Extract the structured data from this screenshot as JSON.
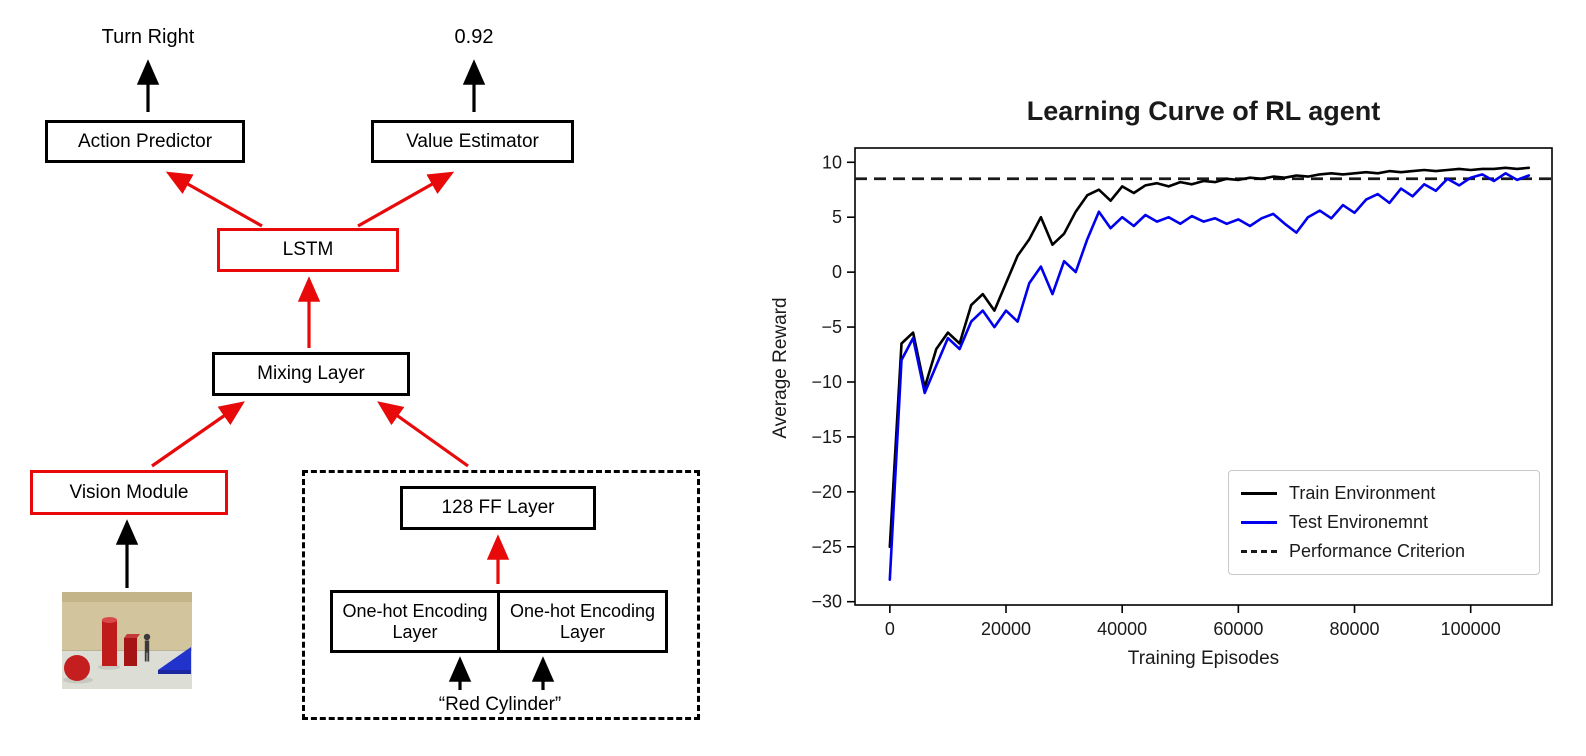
{
  "diagram": {
    "outputs": {
      "action": "Turn Right",
      "value": "0.92"
    },
    "boxes": {
      "action_predictor": "Action Predictor",
      "value_estimator": "Value Estimator",
      "lstm": "LSTM",
      "mixing_layer": "Mixing Layer",
      "vision_module": "Vision Module",
      "ff_layer": "128 FF Layer",
      "onehot_left": "One-hot Encoding Layer",
      "onehot_right": "One-hot Encoding Layer"
    },
    "input_label": "“Red Cylinder”",
    "colors": {
      "highlight": "#e80a0a",
      "box_border": "#000000"
    }
  },
  "chart_data": {
    "type": "line",
    "title": "Learning Curve of RL agent",
    "xlabel": "Training Episodes",
    "ylabel": "Average Reward",
    "xlim": [
      -6000,
      114000
    ],
    "ylim": [
      -30.3,
      11.3
    ],
    "xticks": [
      0,
      20000,
      40000,
      60000,
      80000,
      100000
    ],
    "yticks": [
      10,
      5,
      0,
      -5,
      -10,
      -15,
      -20,
      -25,
      -30
    ],
    "grid": false,
    "legend_position": "lower right",
    "x": [
      0,
      2000,
      4000,
      6000,
      8000,
      10000,
      12000,
      14000,
      16000,
      18000,
      20000,
      22000,
      24000,
      26000,
      28000,
      30000,
      32000,
      34000,
      36000,
      38000,
      40000,
      42000,
      44000,
      46000,
      48000,
      50000,
      52000,
      54000,
      56000,
      58000,
      60000,
      62000,
      64000,
      66000,
      68000,
      70000,
      72000,
      74000,
      76000,
      78000,
      80000,
      82000,
      84000,
      86000,
      88000,
      90000,
      92000,
      94000,
      96000,
      98000,
      100000,
      102000,
      104000,
      106000,
      108000,
      110000
    ],
    "series": [
      {
        "name": "Train Environment",
        "color": "#000000",
        "style": "solid",
        "values": [
          -25,
          -6.5,
          -5.5,
          -10.5,
          -7,
          -5.5,
          -6.5,
          -3,
          -2,
          -3.5,
          -1,
          1.5,
          3,
          5,
          2.5,
          3.5,
          5.5,
          7,
          7.5,
          6.5,
          7.8,
          7.2,
          7.9,
          8.1,
          7.8,
          8.2,
          8,
          8.3,
          8.2,
          8.5,
          8.4,
          8.6,
          8.5,
          8.7,
          8.6,
          8.8,
          8.7,
          8.9,
          9,
          8.9,
          9,
          9.1,
          9,
          9.2,
          9.1,
          9.2,
          9.3,
          9.2,
          9.3,
          9.4,
          9.3,
          9.4,
          9.4,
          9.5,
          9.4,
          9.5
        ]
      },
      {
        "name": "Test Environemnt",
        "color": "#0000ee",
        "style": "solid",
        "values": [
          -28,
          -8,
          -6,
          -11,
          -8.5,
          -6,
          -7,
          -4.5,
          -3.5,
          -5,
          -3.5,
          -4.5,
          -1,
          0.5,
          -2,
          1,
          0,
          3,
          5.5,
          4,
          5,
          4.2,
          5.2,
          4.6,
          5,
          4.4,
          5.1,
          4.6,
          4.9,
          4.4,
          4.8,
          4.2,
          4.9,
          5.3,
          4.4,
          3.6,
          5,
          5.6,
          4.9,
          6.1,
          5.4,
          6.6,
          7.1,
          6.3,
          7.6,
          6.9,
          8,
          7.4,
          8.5,
          7.9,
          8.6,
          8.9,
          8.3,
          9,
          8.4,
          8.8
        ]
      }
    ],
    "criterion": {
      "label": "Performance Criterion",
      "value": 8.5,
      "color": "#1a1a1a",
      "style": "dashed"
    }
  }
}
